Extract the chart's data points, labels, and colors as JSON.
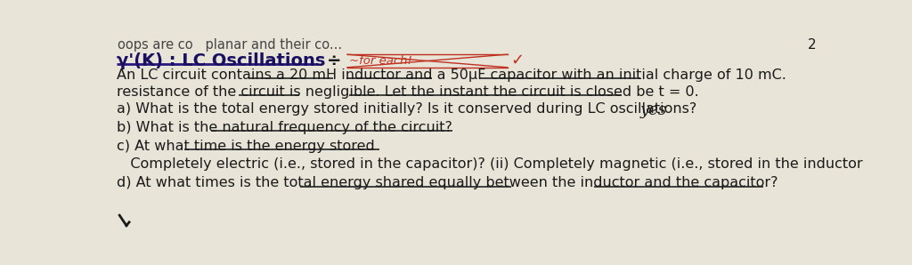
{
  "background_color": "#d8d4c8",
  "page_bg": "#e8e4d8",
  "title_color": "#1a1060",
  "text_color": "#1a1a1a",
  "underline_color": "#1a1060",
  "scribble_color": "#c03020",
  "top_text": "oops are co   planar and their co...",
  "page_number": "2",
  "title": "γ'(K) : LC Oscillations",
  "div_sign": "÷",
  "line2": "An LC circuit contains a 20 mH inductor and a 50μF capacitor with an initial charge of 10 mC.",
  "line3": "resistance of the circuit is negligible. Let the instant the circuit is closed be t = 0.",
  "line4a": "a) What is the total energy stored initially? Is it conserved during LC oscillations?",
  "line4b": "yes",
  "lineb": "b) What is the natural frequency of the circuit?",
  "linec": "c) At what time is the energy stored",
  "lineci": "   Completely electric (i.e., stored in the capacitor)? (ii) Completely magnetic (i.e., stored in the inductor",
  "lined": "d) At what times is the total energy shared equally between the inductor and the capacitor?",
  "figsize": [
    10.24,
    2.98
  ],
  "dpi": 100
}
